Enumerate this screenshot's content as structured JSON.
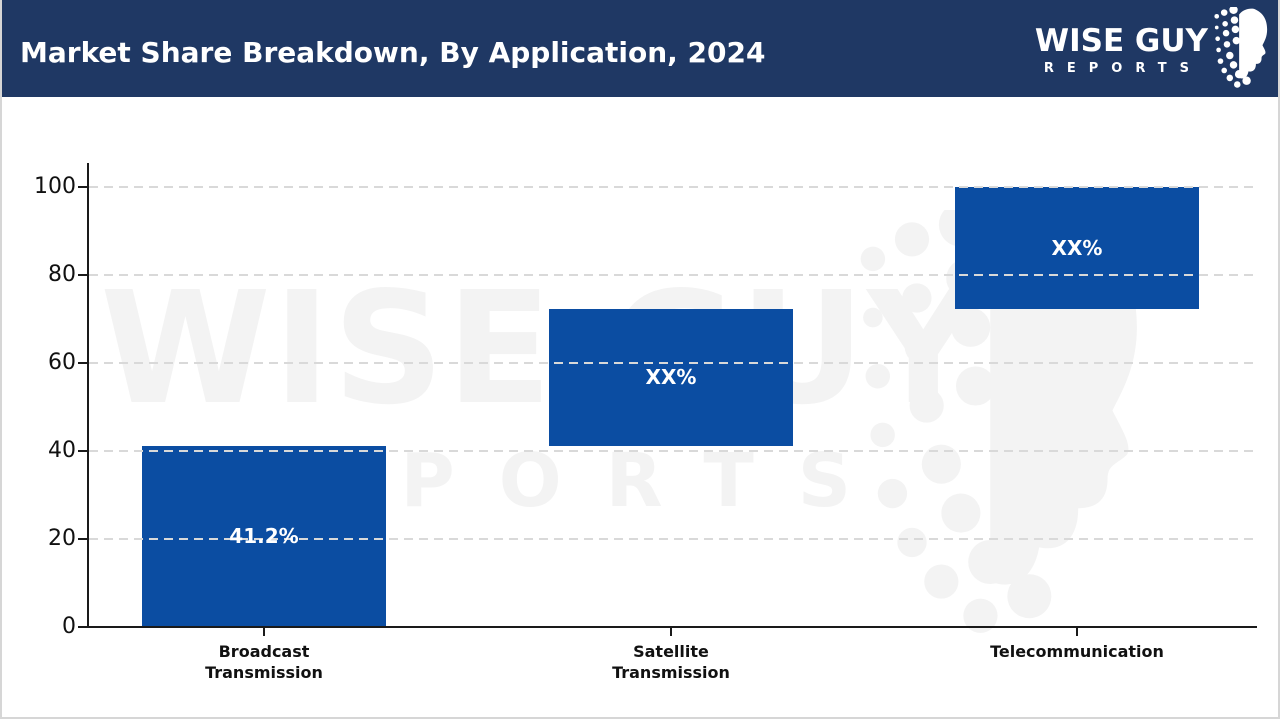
{
  "header": {
    "title": "Market Share Breakdown, By Application, 2024",
    "logo": {
      "wordmark": "WISE GUY",
      "subtext": "REPORTS"
    }
  },
  "watermark": {
    "wordmark": "WISE GUY",
    "subtext": "REPORTS"
  },
  "colors": {
    "header_bg": "#1f3864",
    "bar_blue": "#0b4da2",
    "grid_gray": "#d9d9d9",
    "axis_dark": "#1a1a1a",
    "watermark_gray": "#f3f3f3",
    "bar_label_white": "#ffffff"
  },
  "chart_data": {
    "type": "bar",
    "variant": "floating-segment / waterfall-style market share",
    "title": "Market Share Breakdown, By Application, 2024",
    "categories": [
      "Broadcast Transmission",
      "Satellite Transmission",
      "Telecommunication"
    ],
    "category_label_lines": [
      [
        "Broadcast",
        "Transmission"
      ],
      [
        "Satellite",
        "Transmission"
      ],
      [
        "Telecommunication"
      ]
    ],
    "segments": [
      {
        "category": "Broadcast Transmission",
        "start": 0,
        "end": 41.2,
        "label": "41.2%"
      },
      {
        "category": "Satellite Transmission",
        "start": 41.2,
        "end": 72.2,
        "label": "XX%"
      },
      {
        "category": "Telecommunication",
        "start": 72.2,
        "end": 100,
        "label": "XX%"
      }
    ],
    "ylim": [
      0,
      100
    ],
    "yticks": [
      0,
      20,
      40,
      60,
      80,
      100
    ],
    "xlabel": "",
    "ylabel": "",
    "grid": {
      "horizontal": true,
      "style": "dashed",
      "color": "#d9d9d9",
      "drawn_over_bars": true
    },
    "bar_color": "#0b4da2",
    "bar_label_color": "#ffffff",
    "legend": "none"
  }
}
